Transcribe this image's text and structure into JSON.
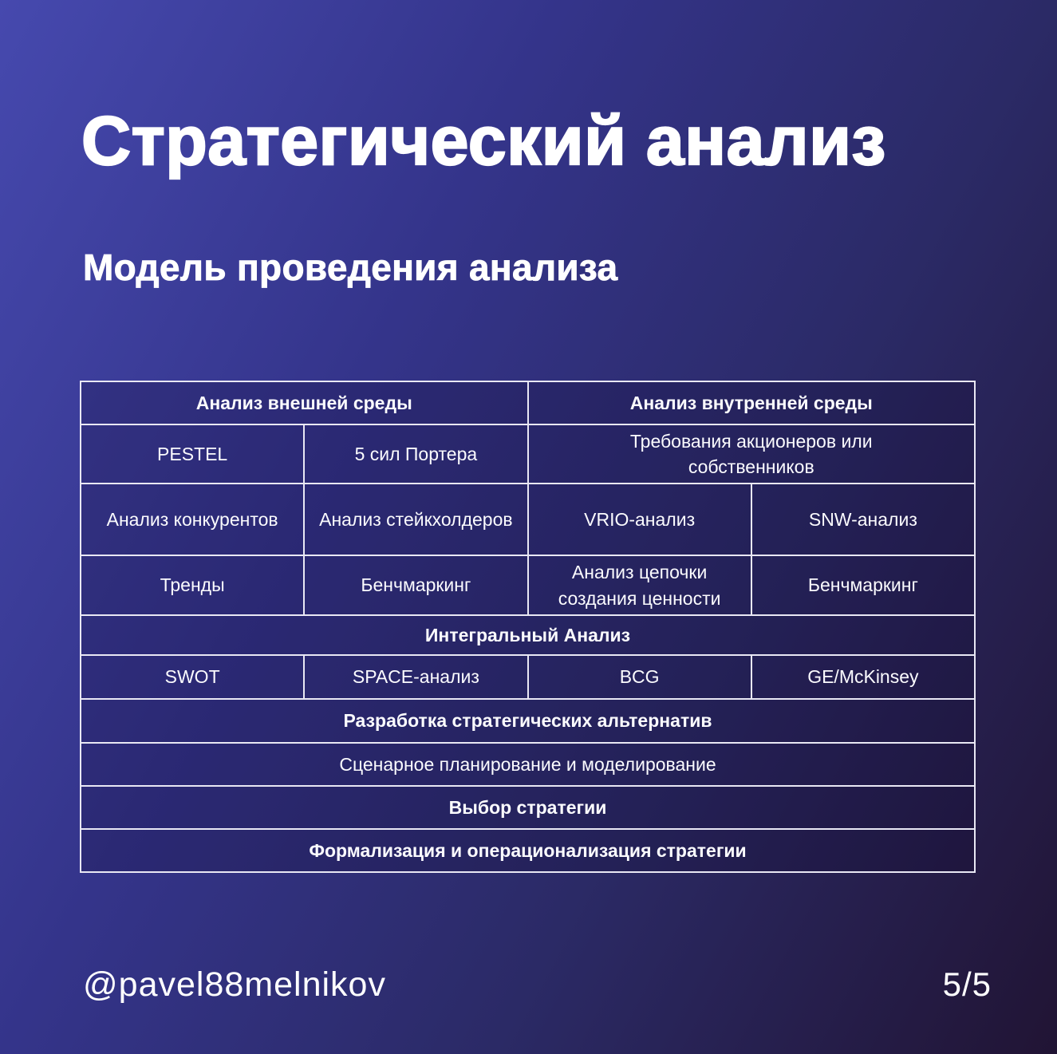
{
  "page": {
    "title": "Стратегический анализ",
    "subtitle": "Модель проведения анализа",
    "footer": {
      "handle": "@pavel88melnikov",
      "page_indicator": "5/5"
    },
    "colors": {
      "gradient_top_left": "#4649ae",
      "gradient_bottom_left": "#34348a",
      "gradient_top_right": "#2b2a66",
      "gradient_bottom_right": "#211434",
      "table_border": "#e9e8f4",
      "text": "#ffffff"
    }
  },
  "table": {
    "rows": [
      {
        "cells": [
          {
            "text": "Анализ внешней среды",
            "span": 2,
            "bold": true
          },
          {
            "text": "Анализ внутренней среды",
            "span": 2,
            "bold": true
          }
        ]
      },
      {
        "cells": [
          {
            "text": "PESTEL",
            "span": 1,
            "bold": false
          },
          {
            "text": "5 сил Портера",
            "span": 1,
            "bold": false
          },
          {
            "text": "Требования акционеров или собственников",
            "span": 2,
            "bold": false
          }
        ]
      },
      {
        "cells": [
          {
            "text": "Анализ конкурентов",
            "span": 1,
            "bold": false
          },
          {
            "text": "Анализ стейкхолдеров",
            "span": 1,
            "bold": false
          },
          {
            "text": "VRIO-анализ",
            "span": 1,
            "bold": false
          },
          {
            "text": "SNW-анализ",
            "span": 1,
            "bold": false
          }
        ]
      },
      {
        "cells": [
          {
            "text": "Тренды",
            "span": 1,
            "bold": false
          },
          {
            "text": "Бенчмаркинг",
            "span": 1,
            "bold": false
          },
          {
            "text": "Анализ цепочки создания ценности",
            "span": 1,
            "bold": false
          },
          {
            "text": "Бенчмаркинг",
            "span": 1,
            "bold": false
          }
        ]
      },
      {
        "cells": [
          {
            "text": "Интегральный Анализ",
            "span": 4,
            "bold": true
          }
        ]
      },
      {
        "cells": [
          {
            "text": "SWOT",
            "span": 1,
            "bold": false
          },
          {
            "text": "SPACE-анализ",
            "span": 1,
            "bold": false
          },
          {
            "text": "BCG",
            "span": 1,
            "bold": false
          },
          {
            "text": "GE/McKinsey",
            "span": 1,
            "bold": false
          }
        ]
      },
      {
        "cells": [
          {
            "text": "Разработка стратегических альтернатив",
            "span": 4,
            "bold": true
          }
        ]
      },
      {
        "cells": [
          {
            "text": "Сценарное планирование и моделирование",
            "span": 4,
            "bold": false
          }
        ]
      },
      {
        "cells": [
          {
            "text": "Выбор стратегии",
            "span": 4,
            "bold": true
          }
        ]
      },
      {
        "cells": [
          {
            "text": "Формализация и операционализация стратегии",
            "span": 4,
            "bold": true
          }
        ]
      }
    ]
  }
}
